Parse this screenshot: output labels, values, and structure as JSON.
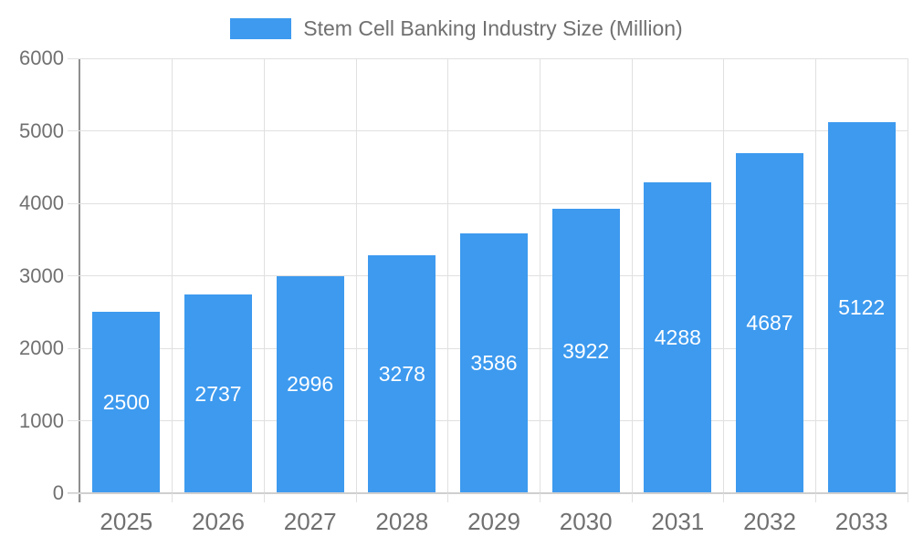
{
  "legend": {
    "label": "Stem Cell Banking Industry Size (Million)"
  },
  "colors": {
    "bar": "#3d9aef",
    "grid": "#e0e0e0",
    "y_axis_line": "#8f8f8f",
    "x_axis_line": "#cfcfcf",
    "tick_label": "#707070",
    "value_label": "#ffffff",
    "background": "#ffffff"
  },
  "chart_data": {
    "type": "bar",
    "title": "Stem Cell Banking Industry Size (Million)",
    "categories": [
      "2025",
      "2026",
      "2027",
      "2028",
      "2029",
      "2030",
      "2031",
      "2032",
      "2033"
    ],
    "values": [
      2500,
      2737,
      2996,
      3278,
      3586,
      3922,
      4288,
      4687,
      5122
    ],
    "xlabel": "",
    "ylabel": "",
    "ylim": [
      0,
      6000
    ],
    "ytick_step": 1000,
    "ytick_labels": [
      "0",
      "1000",
      "2000",
      "3000",
      "4000",
      "5000",
      "6000"
    ],
    "grid": true,
    "legend_position": "top",
    "value_label_position": "inside-center"
  }
}
